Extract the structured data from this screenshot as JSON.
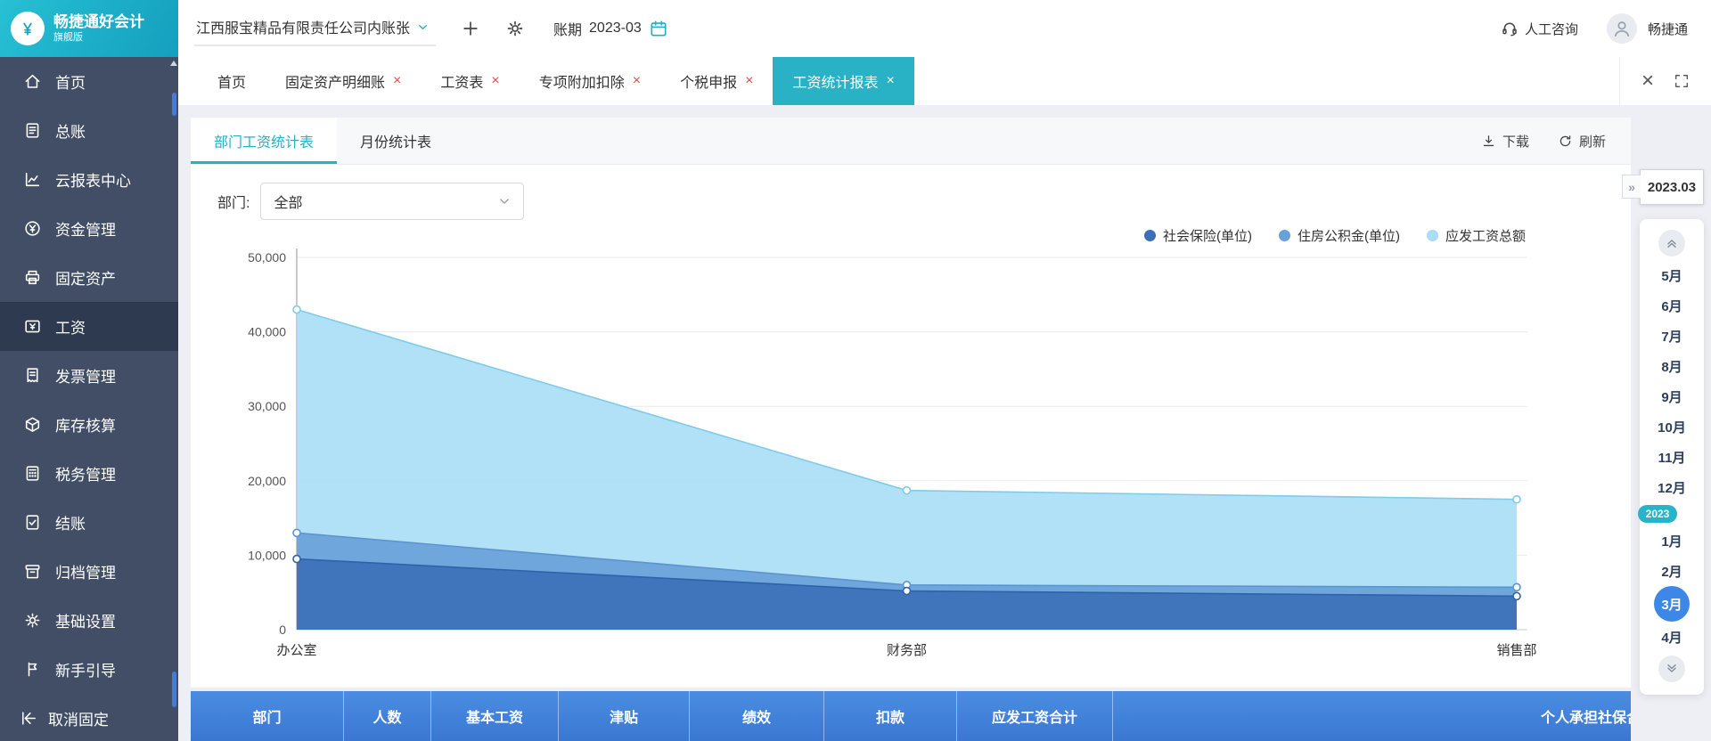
{
  "topbar": {
    "logo_title": "畅捷通好会计",
    "logo_subtitle": "旗舰版",
    "company": "江西服宝精品有限责任公司内账张",
    "period_label": "账期",
    "period_value": "2023-03",
    "help_label": "人工咨询",
    "user_name": "畅捷通"
  },
  "sidebar": {
    "items": [
      {
        "label": "首页",
        "icon": "home-icon",
        "active": false
      },
      {
        "label": "总账",
        "icon": "ledger-icon",
        "active": false
      },
      {
        "label": "云报表中心",
        "icon": "cloud-report-icon",
        "active": false
      },
      {
        "label": "资金管理",
        "icon": "funds-icon",
        "active": false
      },
      {
        "label": "固定资产",
        "icon": "fixed-assets-icon",
        "active": false
      },
      {
        "label": "工资",
        "icon": "salary-icon",
        "active": true
      },
      {
        "label": "发票管理",
        "icon": "invoice-icon",
        "active": false
      },
      {
        "label": "库存核算",
        "icon": "inventory-icon",
        "active": false
      },
      {
        "label": "税务管理",
        "icon": "tax-icon",
        "active": false
      },
      {
        "label": "结账",
        "icon": "closing-icon",
        "active": false
      },
      {
        "label": "归档管理",
        "icon": "archive-icon",
        "active": false
      },
      {
        "label": "基础设置",
        "icon": "settings-icon",
        "active": false
      },
      {
        "label": "新手引导",
        "icon": "guide-icon",
        "active": false
      }
    ],
    "pin_label": "取消固定"
  },
  "tab_bar": {
    "tabs": [
      {
        "label": "首页",
        "closable": false,
        "active": false
      },
      {
        "label": "固定资产明细账",
        "closable": true,
        "active": false
      },
      {
        "label": "工资表",
        "closable": true,
        "active": false
      },
      {
        "label": "专项附加扣除",
        "closable": true,
        "active": false
      },
      {
        "label": "个税申报",
        "closable": true,
        "active": false
      },
      {
        "label": "工资统计报表",
        "closable": true,
        "active": true
      }
    ],
    "close_all": "×"
  },
  "report": {
    "subtabs": [
      {
        "label": "部门工资统计表",
        "active": true
      },
      {
        "label": "月份统计表",
        "active": false
      }
    ],
    "download_label": "下载",
    "refresh_label": "刷新",
    "filter_label": "部门:",
    "filter_value": "全部"
  },
  "chart_data": {
    "type": "area",
    "categories": [
      "办公室",
      "财务部",
      "销售部"
    ],
    "series": [
      {
        "name": "社会保险(单位)",
        "color": "#3b6fb7",
        "edge": "#2f62aa",
        "values": [
          9500,
          5200,
          4500
        ]
      },
      {
        "name": "住房公积金(单位)",
        "color": "#68a0d8",
        "edge": "#5b94d0",
        "values": [
          13000,
          6000,
          5700
        ]
      },
      {
        "name": "应发工资总额",
        "color": "#a9def5",
        "edge": "#7fcbea",
        "values": [
          43000,
          18700,
          17500
        ]
      }
    ],
    "ylim": [
      0,
      50000
    ],
    "yticks": [
      "0",
      "10,000",
      "20,000",
      "30,000",
      "40,000",
      "50,000"
    ],
    "grid": true,
    "legend_position": "top-right"
  },
  "table": {
    "columns": [
      "部门",
      "人数",
      "基本工资",
      "津贴",
      "绩效",
      "扣款",
      "应发工资合计",
      "个人承担社保合计"
    ]
  },
  "month_panel": {
    "current": "2023.03",
    "collapse_glyph": "»",
    "months_top": [
      "5月",
      "6月",
      "7月",
      "8月",
      "9月",
      "10月",
      "11月",
      "12月"
    ],
    "year_badge": "2023",
    "months_bottom": [
      "1月",
      "2月",
      "3月",
      "4月"
    ],
    "selected": "3月"
  }
}
